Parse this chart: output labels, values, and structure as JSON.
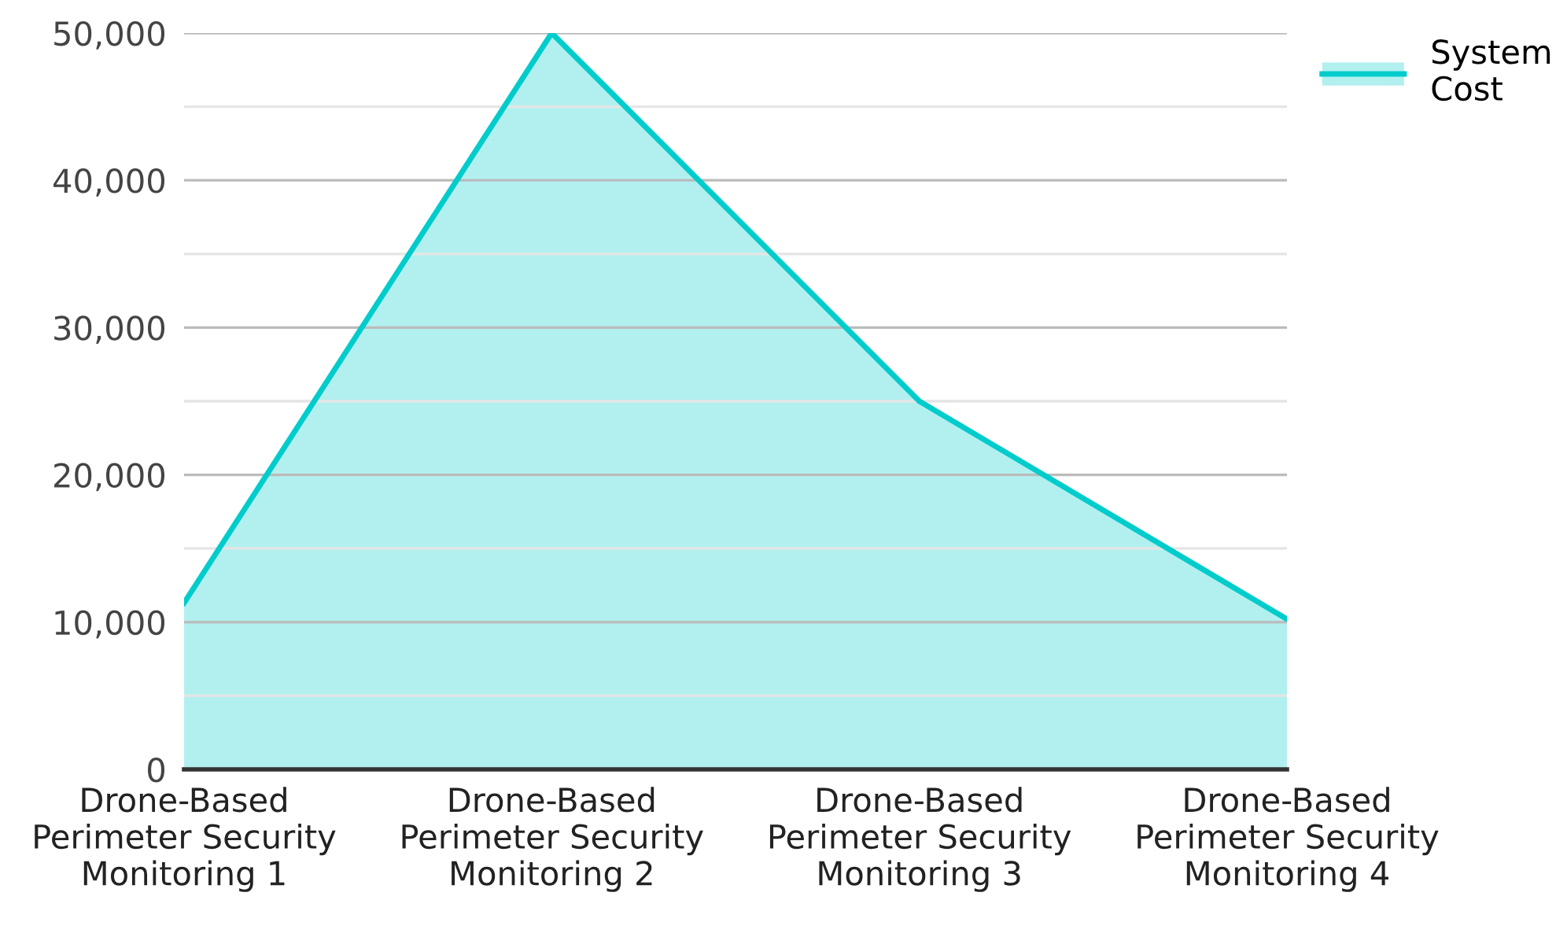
{
  "chart_data": {
    "type": "area",
    "categories": [
      "Drone-Based\nPerimeter Security\nMonitoring 1",
      "Drone-Based\nPerimeter Security\nMonitoring 2",
      "Drone-Based\nPerimeter Security\nMonitoring 3",
      "Drone-Based\nPerimeter Security\nMonitoring 4"
    ],
    "series": [
      {
        "name": "System\nCost",
        "color": "#00cccc",
        "values": [
          11300,
          50000,
          25000,
          10200
        ]
      }
    ],
    "ylim": [
      0,
      50000
    ],
    "yticks": [
      0,
      {
        "value": 5000,
        "label": null
      },
      {
        "value": 10000,
        "label": "10,000"
      },
      {
        "value": 15000,
        "label": null
      },
      {
        "value": 20000,
        "label": "20,000"
      },
      {
        "value": 25000,
        "label": null
      },
      {
        "value": 30000,
        "label": "30,000"
      },
      {
        "value": 35000,
        "label": null
      },
      {
        "value": 40000,
        "label": "40,000"
      },
      {
        "value": 45000,
        "label": null
      },
      {
        "value": 50000,
        "label": "50,000"
      }
    ],
    "grid": "y",
    "legend": "top right",
    "marker": "none",
    "line_style": "solid"
  }
}
